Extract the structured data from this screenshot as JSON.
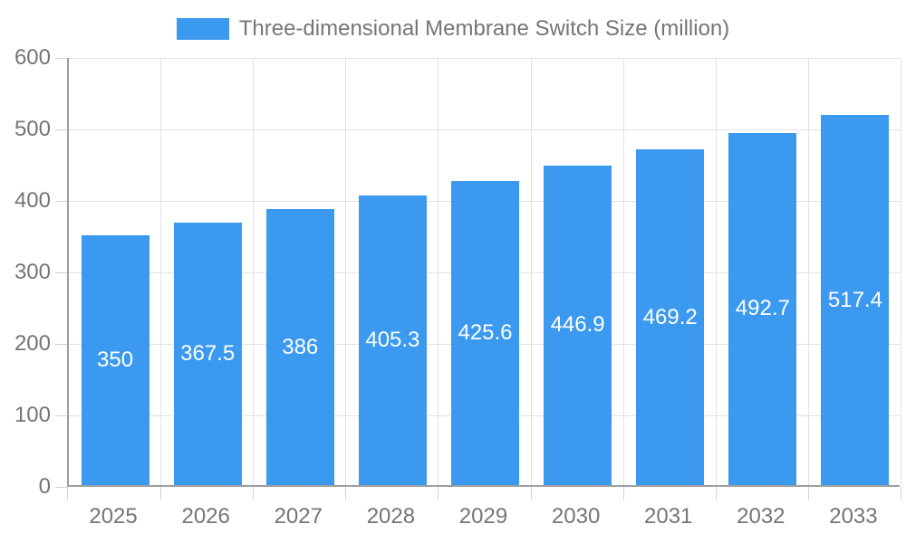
{
  "chart_data": {
    "type": "bar",
    "title": "Three-dimensional Membrane Switch Size (million)",
    "legend": "Three-dimensional Membrane Switch Size (million)",
    "legend_position": "top",
    "categories": [
      "2025",
      "2026",
      "2027",
      "2028",
      "2029",
      "2030",
      "2031",
      "2032",
      "2033"
    ],
    "values": [
      350,
      367.5,
      386,
      405.3,
      425.6,
      446.9,
      469.2,
      492.7,
      517.4
    ],
    "value_labels": [
      "350",
      "367.5",
      "386",
      "405.3",
      "425.6",
      "446.9",
      "469.2",
      "492.7",
      "517.4"
    ],
    "xlabel": "",
    "ylabel": "",
    "ylim": [
      0,
      600
    ],
    "yticks": [
      0,
      100,
      200,
      300,
      400,
      500,
      600
    ],
    "grid": true,
    "colors": {
      "bar": "#3B9AEF",
      "bar_label": "#FFFFFF",
      "axis_text": "#757575",
      "axis_line": "#9E9E9E",
      "gridline": "#E2E2E2",
      "tick": "#D2D2D2",
      "background": "#FFFFFF"
    }
  }
}
